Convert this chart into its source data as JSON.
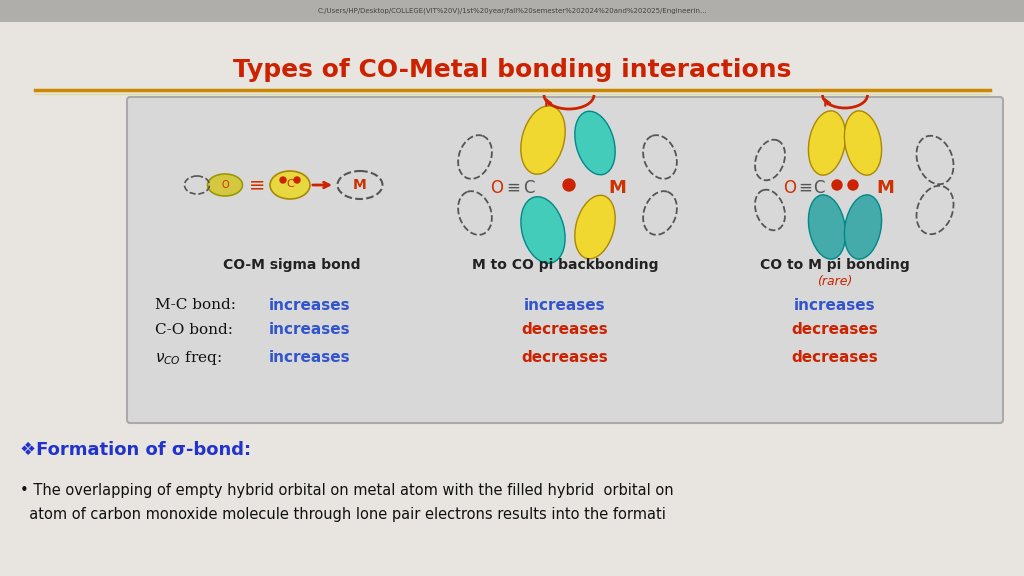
{
  "title": "Types of CO-Metal bonding interactions",
  "title_color": "#cc2200",
  "title_fontsize": 18,
  "page_bg": "#c0bab2",
  "box_bg": "#d8d8d8",
  "col1_label": "CO-M sigma bond",
  "col2_label": "M to CO pi backbonding",
  "col3_label": "CO to M pi bonding",
  "col3_sublabel": "(rare)",
  "col1_values": [
    "increases",
    "increases",
    "increases"
  ],
  "col2_values": [
    "increases",
    "decreases",
    "decreases"
  ],
  "col3_values": [
    "increases",
    "decreases",
    "decreases"
  ],
  "col1_val_colors": [
    "#3355cc",
    "#3355cc",
    "#3355cc"
  ],
  "col2_val_colors": [
    "#3355cc",
    "#cc2200",
    "#cc2200"
  ],
  "col3_val_colors": [
    "#3355cc",
    "#cc2200",
    "#cc2200"
  ],
  "bottom_label1": "❖Formation of σ-bond:",
  "bottom_label1_color": "#2233cc",
  "bottom_text_line1": "The overlapping of empty hybrid orbital on metal atom with the filled hybrid  orbital on",
  "bottom_text_line2": "atom of carbon monoxide molecule through lone pair electrons results into the formati",
  "bottom_text_color": "#111111",
  "orange_line_color": "#cc8800"
}
